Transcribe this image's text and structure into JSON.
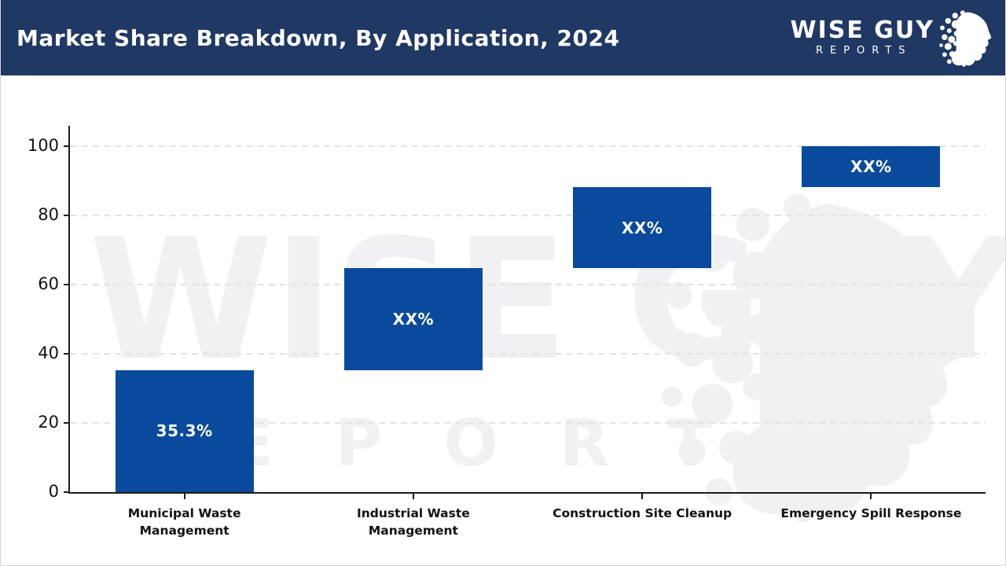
{
  "header": {
    "title": "Market Share Breakdown, By Application, 2024"
  },
  "brand": {
    "name": "WISE GUY",
    "sub": "REPORTS",
    "face_icon": "dotted-head-profile-icon"
  },
  "watermark": {
    "line1": "WISE GUY",
    "line2": "REPORTS",
    "face_icon": "dotted-head-profile-icon"
  },
  "colors": {
    "header_bg": "#1f3864",
    "bar": "#0a4a9c",
    "bar_label": "#ffffff",
    "grid": "#e3e3e4",
    "axis": "#1c1c1c",
    "watermark": "#f1f1f4"
  },
  "chart_data": {
    "type": "bar",
    "subtype": "floating-waterfall",
    "title": "Market Share Breakdown, By Application, 2024",
    "categories": [
      "Municipal Waste Management",
      "Industrial Waste Management",
      "Construction Site Cleanup",
      "Emergency Spill Response"
    ],
    "bars": [
      {
        "category": "Municipal Waste Management",
        "start": 0,
        "end": 35.3,
        "size": 35.3,
        "label": "35.3%"
      },
      {
        "category": "Industrial Waste Management",
        "start": 35.3,
        "end": 64.7,
        "size": 29.4,
        "label": "XX%"
      },
      {
        "category": "Construction Site Cleanup",
        "start": 64.7,
        "end": 88.2,
        "size": 23.5,
        "label": "XX%"
      },
      {
        "category": "Emergency Spill Response",
        "start": 88.2,
        "end": 100,
        "size": 11.8,
        "label": "XX%"
      }
    ],
    "xlabel": "",
    "ylabel": "",
    "ylim": [
      0,
      105
    ],
    "yticks": [
      0,
      20,
      40,
      60,
      80,
      100
    ],
    "grid": "horizontal-dashed",
    "legend": "none",
    "bar_color": "#0a4a9c",
    "label_color": "#ffffff"
  }
}
